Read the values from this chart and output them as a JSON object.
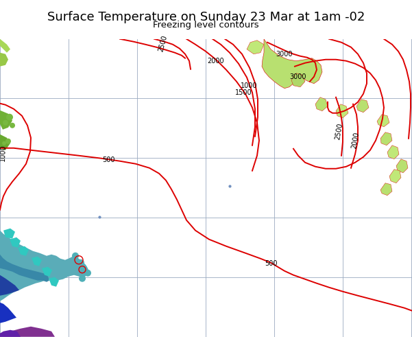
{
  "title": "Surface Temperature on Sunday 23 Mar at 1am -02",
  "subtitle": "Freezing level contours",
  "title_fontsize": 13,
  "subtitle_fontsize": 9.5,
  "bg_color": "white",
  "ocean_color": "#c0d0e8",
  "contour_color": "#dd0000",
  "contour_linewidth": 1.4,
  "grid_color": "#9aaac0",
  "grid_lw": 0.6,
  "figsize": [
    6.01,
    4.91
  ],
  "dpi": 100
}
